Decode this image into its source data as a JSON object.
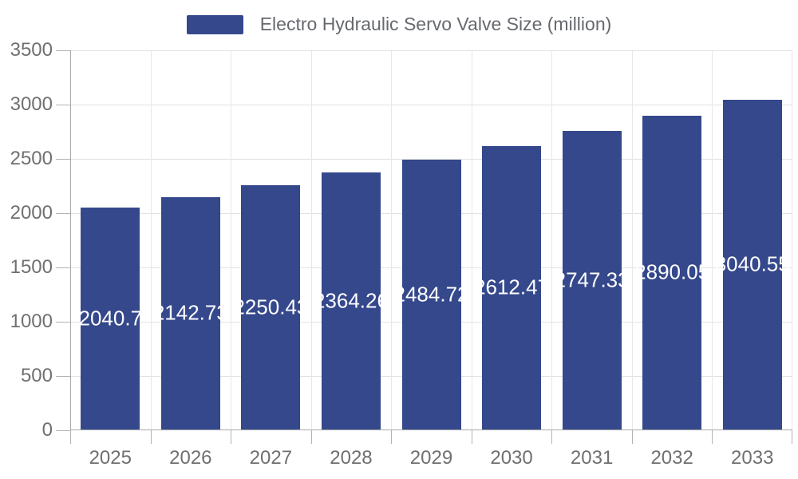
{
  "legend": {
    "label": "Electro Hydraulic Servo Valve Size (million)"
  },
  "colors": {
    "bar": "#35488c",
    "value_label": "#ffffff",
    "axis_text": "#707070",
    "legend_text": "#66696e",
    "gridline": "#e2e2e2",
    "axis_line": "#a9a9a9"
  },
  "chart_data": {
    "type": "bar",
    "title": "Electro Hydraulic Servo Valve Size (million)",
    "categories": [
      "2025",
      "2026",
      "2027",
      "2028",
      "2029",
      "2030",
      "2031",
      "2032",
      "2033"
    ],
    "values": [
      2040.7,
      2142.73,
      2250.43,
      2364.26,
      2484.72,
      2612.47,
      2747.33,
      2890.05,
      3040.55
    ],
    "value_labels": [
      "2040.7",
      "2142.73",
      "2250.43",
      "2364.26",
      "2484.72",
      "2612.47",
      "2747.33",
      "2890.05",
      "3040.55"
    ],
    "xlabel": "",
    "ylabel": "",
    "ylim": [
      0,
      3500
    ],
    "yticks": [
      0,
      500,
      1000,
      1500,
      2000,
      2500,
      3000,
      3500
    ],
    "ytick_labels": [
      "0",
      "500",
      "1000",
      "1500",
      "2000",
      "2500",
      "3000",
      "3500"
    ],
    "grid": true,
    "legend_position": "top-center",
    "bar_color": "#35488c",
    "value_label_position": "middle-of-bar"
  }
}
